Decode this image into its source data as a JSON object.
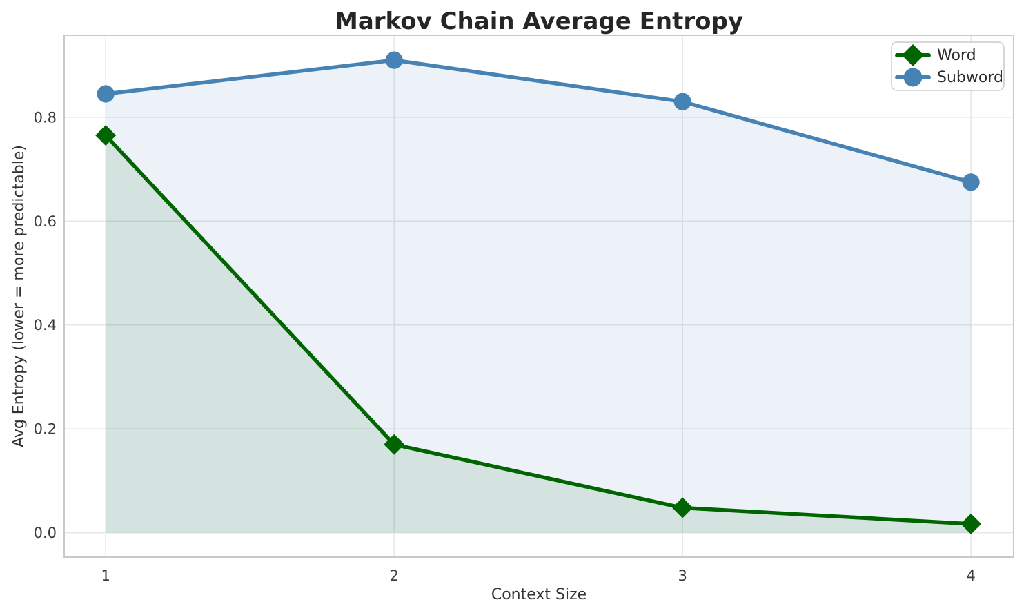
{
  "chart_data": {
    "type": "line",
    "title": "Markov Chain Average Entropy",
    "xlabel": "Context Size",
    "ylabel": "Avg Entropy (lower = more predictable)",
    "x": [
      1,
      2,
      3,
      4
    ],
    "xticklabels": [
      "1",
      "2",
      "3",
      "4"
    ],
    "yticks": [
      0.0,
      0.2,
      0.4,
      0.6,
      0.8
    ],
    "yticklabels": [
      "0.0",
      "0.2",
      "0.4",
      "0.6",
      "0.8"
    ],
    "xlim": [
      0.856,
      4.148
    ],
    "ylim": [
      -0.047,
      0.958
    ],
    "grid": true,
    "legend_position": "upper right",
    "series": [
      {
        "name": "Word",
        "marker": "diamond",
        "color": "#006400",
        "fill_alpha": 0.1,
        "values": [
          0.765,
          0.17,
          0.048,
          0.017
        ]
      },
      {
        "name": "Subword",
        "marker": "circle",
        "color": "#4682B4",
        "fill_alpha": 0.1,
        "values": [
          0.845,
          0.91,
          0.83,
          0.675
        ]
      }
    ]
  },
  "colors": {
    "background": "#ffffff",
    "grid": "#e7e7e9",
    "spine": "#c9c9cb",
    "tick_text": "#3a3a3a",
    "title_text": "#262626",
    "legend_border": "#cccccc",
    "legend_background": "#ffffff"
  }
}
